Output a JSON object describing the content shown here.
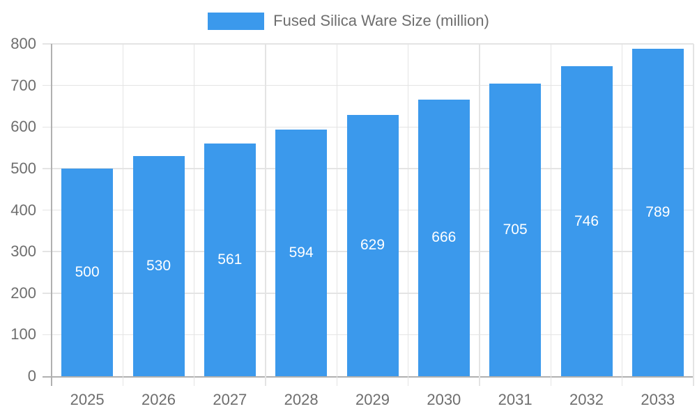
{
  "chart_data": {
    "type": "bar",
    "title": "",
    "legend": {
      "position": "top",
      "label": "Fused Silica Ware Size (million)"
    },
    "categories": [
      "2025",
      "2026",
      "2027",
      "2028",
      "2029",
      "2030",
      "2031",
      "2032",
      "2033"
    ],
    "series": [
      {
        "name": "Fused Silica Ware Size (million)",
        "values": [
          500,
          530,
          561,
          594,
          629,
          666,
          705,
          746,
          789
        ]
      }
    ],
    "xlabel": "",
    "ylabel": "",
    "ylim": [
      0,
      800
    ],
    "yticks": [
      0,
      100,
      200,
      300,
      400,
      500,
      600,
      700,
      800
    ],
    "grid": true,
    "bar_labels_inside": true,
    "bar_label_position": "middle",
    "colors": {
      "bar": "#3b99ec",
      "bar_label": "#ffffff",
      "axis_text": "#6e6e6e",
      "gridline": "#e4e4e4",
      "axis_line": "#b0b0b0",
      "background": "#ffffff"
    }
  }
}
